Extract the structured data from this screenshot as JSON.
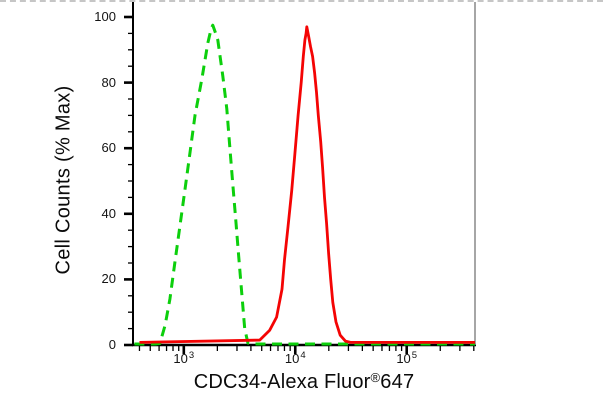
{
  "figure": {
    "background": "#ffffff",
    "border_artifact_color": "#c6c6c6",
    "axis_color": "#000000",
    "right_border_color": "#8f8f8f",
    "tick_label_color": "#141414"
  },
  "chart_data": {
    "type": "line",
    "subtype": "flow-cytometry-histogram-overlay",
    "title": "",
    "xlabel_main": "CDC34-Alexa Fluor",
    "xlabel_reg": "®",
    "xlabel_suffix": "647",
    "xlabel_full": "CDC34-Alexa Fluor®647",
    "ylabel": "Cell Counts (% Max)",
    "grid": false,
    "legend": "none",
    "x_axis": {
      "scale": "log",
      "range": [
        350,
        410000
      ],
      "major_ticks": [
        {
          "value": 1000,
          "base": "10",
          "exp": "3"
        },
        {
          "value": 10000,
          "base": "10",
          "exp": "4"
        },
        {
          "value": 100000,
          "base": "10",
          "exp": "5"
        }
      ],
      "minor_ticks": [
        400,
        500,
        600,
        700,
        800,
        900,
        2000,
        3000,
        4000,
        5000,
        6000,
        7000,
        8000,
        9000,
        20000,
        30000,
        40000,
        50000,
        60000,
        70000,
        80000,
        90000,
        200000,
        300000,
        400000
      ]
    },
    "y_axis": {
      "range": [
        0,
        100
      ],
      "major_ticks": [
        0,
        20,
        40,
        60,
        80,
        100
      ],
      "minor_ticks": [
        5,
        10,
        15,
        25,
        30,
        35,
        45,
        50,
        55,
        65,
        70,
        75,
        85,
        90,
        95
      ]
    },
    "series": [
      {
        "name": "green-dashed",
        "color": "#0ccf0c",
        "line_style": "dashed",
        "line_width": 3,
        "peak_x": 1820,
        "peak_y": 97.5,
        "points": [
          [
            360,
            0.3
          ],
          [
            560,
            0.3
          ],
          [
            610,
            0.5
          ],
          [
            680,
            6
          ],
          [
            750,
            14
          ],
          [
            830,
            25
          ],
          [
            920,
            36
          ],
          [
            1020,
            47
          ],
          [
            1130,
            58
          ],
          [
            1260,
            70
          ],
          [
            1450,
            81
          ],
          [
            1640,
            92
          ],
          [
            1760,
            96.5
          ],
          [
            1820,
            97.5
          ],
          [
            1910,
            95.5
          ],
          [
            2020,
            93
          ],
          [
            2240,
            82
          ],
          [
            2430,
            72
          ],
          [
            2590,
            60
          ],
          [
            2750,
            49
          ],
          [
            2930,
            38
          ],
          [
            3110,
            27
          ],
          [
            3310,
            16
          ],
          [
            3520,
            5
          ],
          [
            3760,
            0.6
          ],
          [
            4100,
            0.3
          ],
          [
            410000,
            0.3
          ]
        ]
      },
      {
        "name": "red-solid",
        "color": "#f40404",
        "line_style": "solid",
        "line_width": 2.8,
        "peak_x": 12700,
        "peak_y": 97,
        "points": [
          [
            400,
            0.8
          ],
          [
            4800,
            1.5
          ],
          [
            5900,
            4.5
          ],
          [
            6800,
            8.5
          ],
          [
            7600,
            17
          ],
          [
            8000,
            26
          ],
          [
            8600,
            36
          ],
          [
            9300,
            47
          ],
          [
            9900,
            58
          ],
          [
            10600,
            70
          ],
          [
            11300,
            80
          ],
          [
            11800,
            88
          ],
          [
            12200,
            93
          ],
          [
            12500,
            95
          ],
          [
            12700,
            97
          ],
          [
            13200,
            94
          ],
          [
            13700,
            91
          ],
          [
            14300,
            88
          ],
          [
            14900,
            83
          ],
          [
            15500,
            77
          ],
          [
            16100,
            70
          ],
          [
            16900,
            62
          ],
          [
            17600,
            54
          ],
          [
            18300,
            45
          ],
          [
            19100,
            37
          ],
          [
            19900,
            28
          ],
          [
            20800,
            20
          ],
          [
            21700,
            13
          ],
          [
            23200,
            7
          ],
          [
            25300,
            3
          ],
          [
            28200,
            1.2
          ],
          [
            31300,
            0.8
          ],
          [
            410000,
            0.8
          ]
        ]
      }
    ]
  }
}
